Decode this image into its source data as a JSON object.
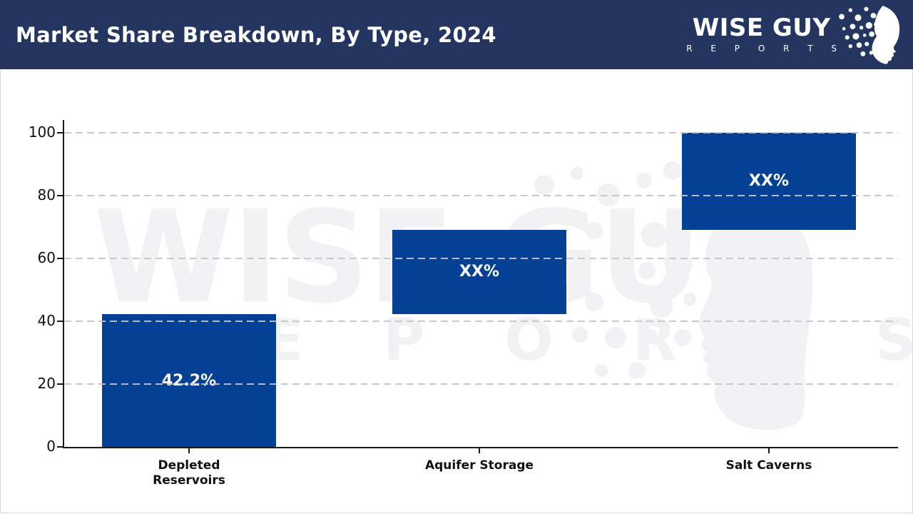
{
  "header": {
    "title": "Market Share Breakdown, By Type, 2024",
    "logo": {
      "line1": "WISE GUY",
      "line2": "R E P O R T S"
    },
    "bg_color": "#243660"
  },
  "watermark": {
    "line1": "WISE GUY",
    "line2": "R E P O R T S"
  },
  "chart_data": {
    "type": "bar",
    "subtype": "stacked-waterfall",
    "title": "Market Share Breakdown, By Type, 2024",
    "categories": [
      "Depleted Reservoirs",
      "Aquifer Storage",
      "Salt Caverns"
    ],
    "segments": [
      {
        "category": "Depleted Reservoirs",
        "start": 0,
        "end": 42.2,
        "label": "42.2%"
      },
      {
        "category": "Aquifer Storage",
        "start": 42.2,
        "end": 69.2,
        "label": "XX%"
      },
      {
        "category": "Salt Caverns",
        "start": 69.2,
        "end": 100,
        "label": "XX%"
      }
    ],
    "bar_color": "#044194",
    "value_label_color": "#ffffff",
    "xlabel": "",
    "ylabel": "",
    "ylim": [
      0,
      100
    ],
    "yticks": [
      0,
      20,
      40,
      60,
      80,
      100
    ],
    "grid": "horizontal dashed gridlines drawn above bars",
    "legend": "none"
  }
}
